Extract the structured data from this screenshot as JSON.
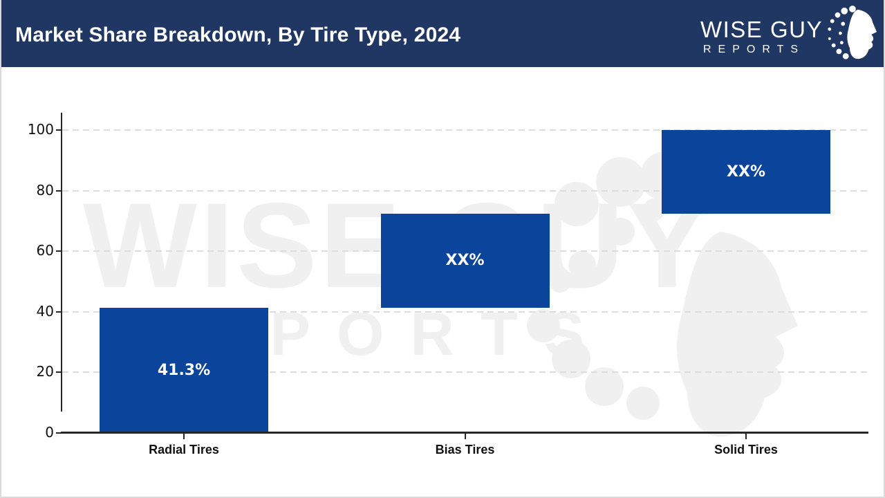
{
  "header": {
    "title": "Market Share Breakdown, By Tire Type, 2024",
    "bg_color": "#203764",
    "logo": {
      "line1": "WISE GUY",
      "line2": "REPORTS"
    }
  },
  "watermark": {
    "line1": "WISE GUY",
    "line2": "REPORTS"
  },
  "chart_data": {
    "type": "bar",
    "subtype": "stacked-waterfall-percent",
    "title": "Market Share Breakdown, By Tire Type, 2024",
    "categories": [
      "Radial Tires",
      "Bias Tires",
      "Solid Tires"
    ],
    "segments": [
      {
        "category": "Radial Tires",
        "start": 0,
        "end": 41.3,
        "label": "41.3%"
      },
      {
        "category": "Bias Tires",
        "start": 41.3,
        "end": 72.4,
        "label": "XX%"
      },
      {
        "category": "Solid Tires",
        "start": 72.4,
        "end": 100,
        "label": "XX%"
      }
    ],
    "xlabel": "",
    "ylabel": "",
    "yticks": [
      0,
      20,
      40,
      60,
      80,
      100
    ],
    "ylim": [
      0,
      105
    ],
    "grid": {
      "axis": "y",
      "style": "dashed",
      "color": "#dcdcdc"
    },
    "legend": null,
    "bar_color": "#0a449b",
    "bar_label_color": "#ffffff",
    "axis_color": "#262626"
  },
  "colors": {
    "header_bg": "#203764",
    "bar": "#0a449b",
    "grid": "#dcdcdc",
    "axis": "#262626",
    "watermark": "#f0f0f0",
    "page_border": "#d9d9d9"
  }
}
